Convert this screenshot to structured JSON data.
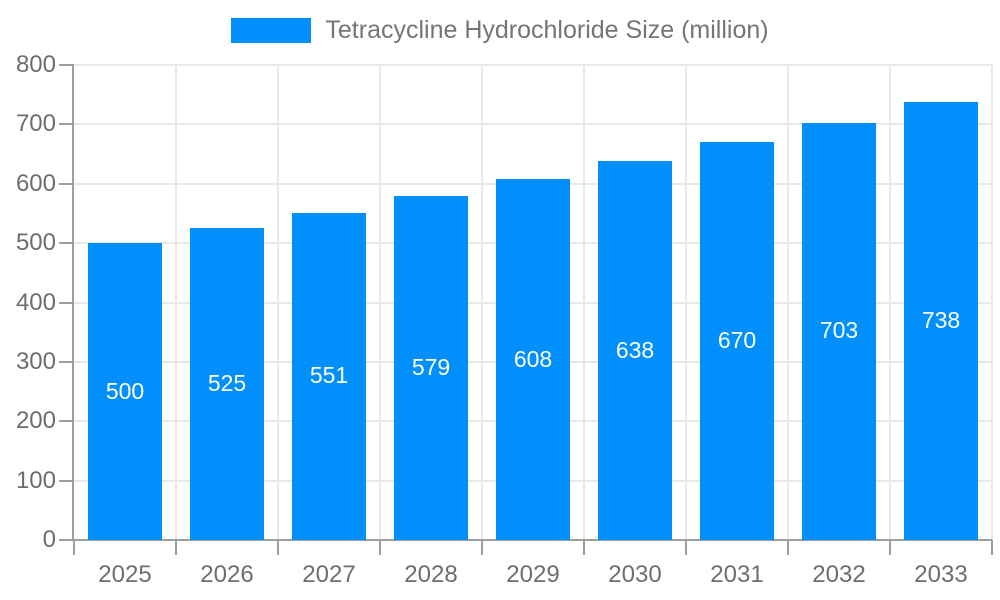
{
  "chart_data": {
    "type": "bar",
    "title": "Tetracycline Hydrochloride Size (million)",
    "series_name": "Tetracycline Hydrochloride Size (million)",
    "categories": [
      "2025",
      "2026",
      "2027",
      "2028",
      "2029",
      "2030",
      "2031",
      "2032",
      "2033"
    ],
    "values": [
      500,
      525,
      551,
      579,
      608,
      638,
      670,
      703,
      738
    ],
    "value_labels": [
      "500",
      "525",
      "551",
      "579",
      "608",
      "638",
      "670",
      "703",
      "738"
    ],
    "xlabel": "",
    "ylabel": "",
    "ylim": [
      0,
      800
    ],
    "yticks": [
      0,
      100,
      200,
      300,
      400,
      500,
      600,
      700,
      800
    ],
    "grid": true,
    "legend_position": "top",
    "colors": {
      "bar": "#008FFB",
      "grid_line": "#e8e8e8",
      "axis_line": "#9e9e9e",
      "tick_mark": "#9e9e9e",
      "tick_label": "#6e6e6e",
      "legend_text": "#757575",
      "bar_value_text": "#ffffff",
      "background": "#ffffff"
    }
  }
}
